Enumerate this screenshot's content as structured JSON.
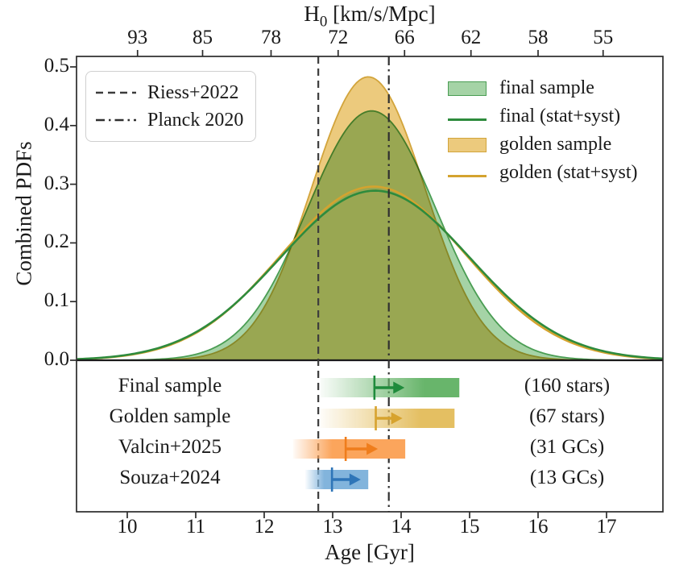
{
  "chart_data": {
    "type": "composite",
    "title": "",
    "x_axis": {
      "label": "Age [Gyr]",
      "min": 9.27,
      "max": 17.83,
      "ticks": [
        10,
        11,
        12,
        13,
        14,
        15,
        16,
        17
      ]
    },
    "y_axis": {
      "label": "Combined PDFs",
      "min": 0.0,
      "max": 0.5,
      "ticks": [
        0.0,
        0.1,
        0.2,
        0.3,
        0.4,
        0.5
      ]
    },
    "top_axis": {
      "title_h": "H",
      "title_sub": "0",
      "title_unit": " [km/s/Mpc]",
      "ticks": [
        {
          "label": "93",
          "age": 10.15
        },
        {
          "label": "85",
          "age": 11.1
        },
        {
          "label": "78",
          "age": 12.1
        },
        {
          "label": "72",
          "age": 13.08
        },
        {
          "label": "66",
          "age": 14.05
        },
        {
          "label": "62",
          "age": 15.02
        },
        {
          "label": "58",
          "age": 16.0
        },
        {
          "label": "55",
          "age": 16.95
        }
      ]
    },
    "curves": [
      {
        "name": "final sample",
        "kind": "fill",
        "mu": 13.57,
        "sigma": 0.94,
        "peak": 0.425,
        "fill": "#a5d3a6",
        "stroke": "#4a9d53",
        "blend": "normal"
      },
      {
        "name": "golden sample",
        "kind": "fill",
        "mu": 13.52,
        "sigma": 0.83,
        "peak": 0.483,
        "fill": "#ecca7d",
        "stroke": "#d2a43b",
        "blend": "multiply"
      },
      {
        "name": "golden (stat+syst)",
        "kind": "line",
        "mu": 13.6,
        "sigma": 1.35,
        "peak": 0.296,
        "stroke": "#d4a32f"
      },
      {
        "name": "final (stat+syst)",
        "kind": "line",
        "mu": 13.62,
        "sigma": 1.38,
        "peak": 0.289,
        "stroke": "#2e8b3d"
      }
    ],
    "ref_lines": [
      {
        "label": "Riess+2022",
        "age": 12.79,
        "style": "dashed",
        "color": "#3c3c3c"
      },
      {
        "label": "Planck 2020",
        "age": 13.82,
        "style": "dashdot",
        "color": "#2f2f2f"
      }
    ],
    "rows": [
      {
        "label": "Final sample",
        "count": "(160 stars)",
        "bar_start": 12.82,
        "bar_end": 14.85,
        "value": 13.61,
        "arrow_tip": 14.05,
        "bar_color": "#68b56b",
        "arrow_color": "#1f8b3c",
        "fade_end": 0.75
      },
      {
        "label": "Golden sample",
        "count": "(67 stars)",
        "bar_start": 12.82,
        "bar_end": 14.78,
        "value": 13.63,
        "arrow_tip": 14.02,
        "bar_color": "#e4bf62",
        "arrow_color": "#d7a32e",
        "fade_end": 0.75
      },
      {
        "label": "Valcin+2025",
        "count": "(31 GCs)",
        "bar_start": 12.42,
        "bar_end": 14.06,
        "value": 13.19,
        "arrow_tip": 13.66,
        "bar_color": "#fba55c",
        "arrow_color": "#ef7d1c",
        "fade_end": 0.35
      },
      {
        "label": "Souza+2024",
        "count": "(13 GCs)",
        "bar_start": 12.6,
        "bar_end": 13.52,
        "value": 12.99,
        "arrow_tip": 13.41,
        "bar_color": "#82b4dc",
        "arrow_color": "#2e75b8",
        "fade_end": 0.3
      }
    ]
  },
  "legend_left": {
    "items": [
      {
        "label": "Riess+2022",
        "style": "dashed",
        "color": "#3c3c3c"
      },
      {
        "label": "Planck 2020",
        "style": "dashdot",
        "color": "#2f2f2f"
      }
    ]
  },
  "legend_right": {
    "items": [
      {
        "label": "final sample",
        "swatch": "patch",
        "fill": "#a5d3a6",
        "stroke": "#4a9d53"
      },
      {
        "label": "final (stat+syst)",
        "swatch": "line",
        "stroke": "#2e8b3d"
      },
      {
        "label": "golden sample",
        "swatch": "patch",
        "fill": "#ecca7d",
        "stroke": "#d2a43b"
      },
      {
        "label": "golden (stat+syst)",
        "swatch": "line",
        "stroke": "#d4a32f"
      }
    ]
  }
}
